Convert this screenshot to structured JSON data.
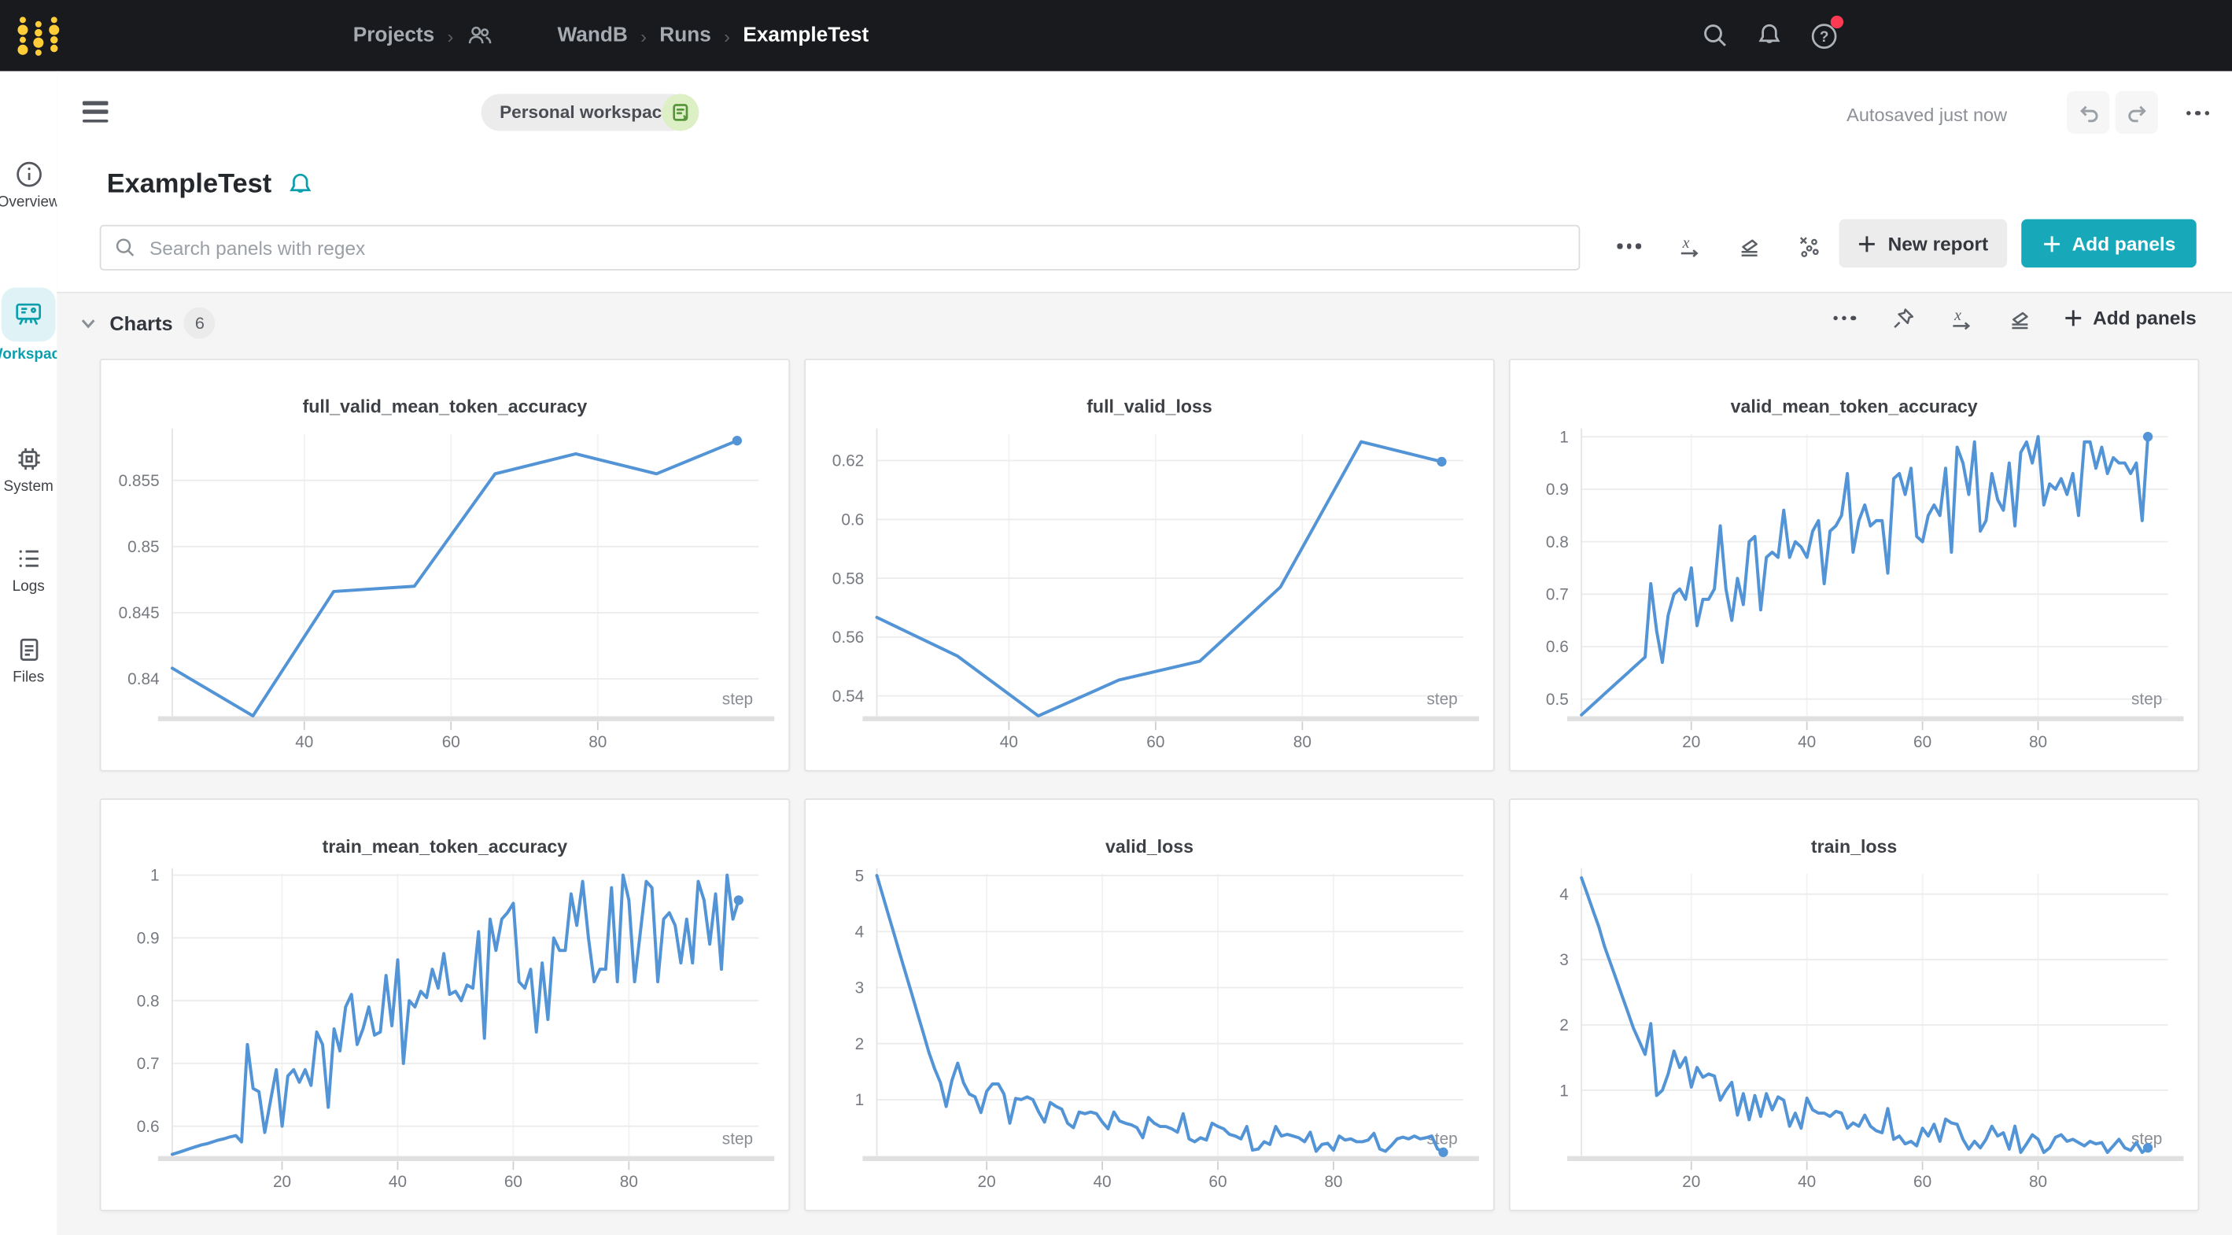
{
  "topnav": {
    "breadcrumb": {
      "projects": "Projects",
      "team": "WandB",
      "runs": "Runs",
      "run": "ExampleTest"
    }
  },
  "header": {
    "workspace_badge": "Personal workspace",
    "autosaved": "Autosaved just now"
  },
  "title": {
    "run_name": "ExampleTest"
  },
  "search": {
    "placeholder": "Search panels with regex"
  },
  "toolbar": {
    "new_report": "New report",
    "add_panels": "Add panels"
  },
  "charts_section": {
    "label": "Charts",
    "count": "6",
    "add_panels": "Add panels"
  },
  "sidebar": {
    "items": [
      {
        "label": "Overview"
      },
      {
        "label": "Workspace"
      },
      {
        "label": "System"
      },
      {
        "label": "Logs"
      },
      {
        "label": "Files"
      }
    ]
  },
  "colors": {
    "accent_teal_button": "#17a9b9",
    "accent_teal_sidebar": "#0b9fae",
    "line_blue": "#5294d6",
    "navbar_bg": "#191a1d",
    "logo_yellow": "#ffcd38",
    "notification_red": "#ff3b54"
  },
  "chart_data": [
    {
      "type": "line",
      "title": "full_valid_mean_token_accuracy",
      "xlabel": "step",
      "x": [
        22,
        33,
        44,
        55,
        66,
        77,
        88,
        99
      ],
      "values": [
        0.8408,
        0.8372,
        0.8466,
        0.847,
        0.8555,
        0.857,
        0.8555,
        0.858
      ],
      "xticks": [
        40,
        60,
        80
      ],
      "yticks": [
        0.84,
        0.845,
        0.85,
        0.855
      ],
      "xlim": [
        22,
        100
      ],
      "ylim": [
        0.8372,
        0.8585
      ],
      "grid": true,
      "end_marker": true,
      "legend": "none"
    },
    {
      "type": "line",
      "title": "full_valid_loss",
      "xlabel": "step",
      "x": [
        22,
        33,
        44,
        55,
        66,
        77,
        88,
        99
      ],
      "values": [
        0.5667,
        0.5535,
        0.5332,
        0.5454,
        0.5518,
        0.577,
        0.6264,
        0.6196
      ],
      "xticks": [
        40,
        60,
        80
      ],
      "yticks": [
        0.54,
        0.56,
        0.58,
        0.6,
        0.62
      ],
      "xlim": [
        22,
        100
      ],
      "ylim": [
        0.5332,
        0.629
      ],
      "grid": true,
      "end_marker": true,
      "legend": "none"
    },
    {
      "type": "line",
      "title": "valid_mean_token_accuracy",
      "xlabel": "step",
      "x_start": 1,
      "x_step": 1,
      "values": [
        0.47,
        0.48,
        0.49,
        0.5,
        0.51,
        0.52,
        0.53,
        0.54,
        0.55,
        0.56,
        0.57,
        0.58,
        0.72,
        0.63,
        0.57,
        0.66,
        0.7,
        0.71,
        0.69,
        0.75,
        0.64,
        0.69,
        0.69,
        0.71,
        0.83,
        0.71,
        0.65,
        0.73,
        0.68,
        0.8,
        0.81,
        0.67,
        0.77,
        0.78,
        0.77,
        0.86,
        0.77,
        0.8,
        0.79,
        0.77,
        0.82,
        0.84,
        0.72,
        0.82,
        0.83,
        0.85,
        0.93,
        0.78,
        0.84,
        0.87,
        0.83,
        0.84,
        0.84,
        0.74,
        0.92,
        0.93,
        0.89,
        0.94,
        0.81,
        0.8,
        0.85,
        0.87,
        0.85,
        0.94,
        0.78,
        0.98,
        0.95,
        0.89,
        0.99,
        0.82,
        0.84,
        0.93,
        0.88,
        0.86,
        0.95,
        0.83,
        0.97,
        0.99,
        0.95,
        1.0,
        0.87,
        0.91,
        0.9,
        0.92,
        0.89,
        0.93,
        0.85,
        0.99,
        0.99,
        0.94,
        0.98,
        0.93,
        0.96,
        0.95,
        0.95,
        0.93,
        0.95,
        0.84,
        1.0
      ],
      "xticks": [
        20,
        40,
        60,
        80
      ],
      "yticks": [
        0.5,
        0.6,
        0.7,
        0.8,
        0.9,
        1
      ],
      "xlim": [
        1,
        100
      ],
      "ylim": [
        0.468,
        1.005
      ],
      "grid": true,
      "end_marker": true,
      "legend": "none"
    },
    {
      "type": "line",
      "title": "train_mean_token_accuracy",
      "xlabel": "step",
      "x_start": 1,
      "x_step": 1,
      "values": [
        0.555,
        0.558,
        0.561,
        0.564,
        0.567,
        0.57,
        0.572,
        0.575,
        0.578,
        0.58,
        0.583,
        0.585,
        0.575,
        0.73,
        0.66,
        0.655,
        0.59,
        0.64,
        0.69,
        0.6,
        0.68,
        0.69,
        0.67,
        0.69,
        0.665,
        0.75,
        0.73,
        0.63,
        0.755,
        0.72,
        0.79,
        0.81,
        0.73,
        0.755,
        0.79,
        0.745,
        0.75,
        0.84,
        0.76,
        0.865,
        0.7,
        0.8,
        0.79,
        0.815,
        0.805,
        0.85,
        0.82,
        0.875,
        0.81,
        0.815,
        0.8,
        0.825,
        0.82,
        0.91,
        0.74,
        0.93,
        0.88,
        0.93,
        0.94,
        0.955,
        0.83,
        0.82,
        0.85,
        0.75,
        0.86,
        0.77,
        0.9,
        0.88,
        0.88,
        0.97,
        0.92,
        0.99,
        0.9,
        0.83,
        0.85,
        0.85,
        0.98,
        0.83,
        1.0,
        0.96,
        0.83,
        0.91,
        0.99,
        0.98,
        0.83,
        0.93,
        0.94,
        0.92,
        0.86,
        0.93,
        0.86,
        0.99,
        0.96,
        0.89,
        0.97,
        0.85,
        1.0,
        0.93,
        0.96
      ],
      "xticks": [
        20,
        40,
        60,
        80
      ],
      "yticks": [
        0.6,
        0.7,
        0.8,
        0.9,
        1
      ],
      "xlim": [
        1,
        100
      ],
      "ylim": [
        0.553,
        1.002
      ],
      "grid": true,
      "end_marker": true,
      "legend": "none"
    },
    {
      "type": "line",
      "title": "valid_loss",
      "xlabel": "step",
      "x_start": 1,
      "x_step": 1,
      "values": [
        5.0,
        4.65,
        4.3,
        3.95,
        3.6,
        3.25,
        2.9,
        2.55,
        2.2,
        1.85,
        1.55,
        1.3,
        0.88,
        1.35,
        1.65,
        1.3,
        1.1,
        1.05,
        0.77,
        1.15,
        1.28,
        1.28,
        1.1,
        0.58,
        1.02,
        1.0,
        1.05,
        1.0,
        0.78,
        0.6,
        0.95,
        0.88,
        0.83,
        0.58,
        0.5,
        0.78,
        0.75,
        0.78,
        0.75,
        0.6,
        0.48,
        0.78,
        0.62,
        0.58,
        0.55,
        0.5,
        0.32,
        0.68,
        0.58,
        0.52,
        0.52,
        0.48,
        0.42,
        0.75,
        0.3,
        0.25,
        0.32,
        0.28,
        0.58,
        0.52,
        0.48,
        0.38,
        0.35,
        0.3,
        0.52,
        0.1,
        0.12,
        0.25,
        0.2,
        0.52,
        0.35,
        0.38,
        0.35,
        0.32,
        0.25,
        0.42,
        0.08,
        0.2,
        0.22,
        0.1,
        0.35,
        0.28,
        0.3,
        0.25,
        0.25,
        0.28,
        0.4,
        0.12,
        0.08,
        0.18,
        0.3,
        0.33,
        0.3,
        0.35,
        0.3,
        0.32,
        0.35,
        0.12,
        0.06
      ],
      "xticks": [
        20,
        40,
        60,
        80
      ],
      "yticks": [
        1,
        2,
        3,
        4,
        5
      ],
      "xlim": [
        1,
        100
      ],
      "ylim": [
        0,
        5.03
      ],
      "grid": true,
      "end_marker": true,
      "legend": "none"
    },
    {
      "type": "line",
      "title": "train_loss",
      "xlabel": "step",
      "x_start": 1,
      "x_step": 1,
      "values": [
        4.25,
        4.0,
        3.75,
        3.5,
        3.2,
        2.95,
        2.7,
        2.45,
        2.2,
        1.95,
        1.75,
        1.55,
        2.02,
        0.92,
        1.0,
        1.25,
        1.6,
        1.35,
        1.5,
        1.05,
        1.35,
        1.2,
        1.25,
        1.22,
        0.85,
        1.0,
        1.12,
        0.62,
        0.95,
        0.55,
        0.92,
        0.6,
        0.95,
        0.7,
        0.9,
        0.85,
        0.45,
        0.65,
        0.42,
        0.88,
        0.7,
        0.65,
        0.65,
        0.6,
        0.68,
        0.65,
        0.42,
        0.5,
        0.45,
        0.62,
        0.45,
        0.38,
        0.35,
        0.72,
        0.25,
        0.3,
        0.18,
        0.22,
        0.15,
        0.42,
        0.3,
        0.48,
        0.22,
        0.56,
        0.5,
        0.48,
        0.25,
        0.1,
        0.22,
        0.12,
        0.25,
        0.45,
        0.3,
        0.35,
        0.1,
        0.45,
        0.05,
        0.18,
        0.32,
        0.25,
        0.05,
        0.12,
        0.28,
        0.32,
        0.22,
        0.25,
        0.2,
        0.15,
        0.22,
        0.18,
        0.2,
        0.05,
        0.15,
        0.25,
        0.12,
        0.08,
        0.2,
        0.05,
        0.12
      ],
      "xticks": [
        20,
        40,
        60,
        80
      ],
      "yticks": [
        1,
        2,
        3,
        4
      ],
      "xlim": [
        1,
        100
      ],
      "ylim": [
        0,
        4.31
      ],
      "grid": true,
      "end_marker": true,
      "legend": "none"
    }
  ]
}
